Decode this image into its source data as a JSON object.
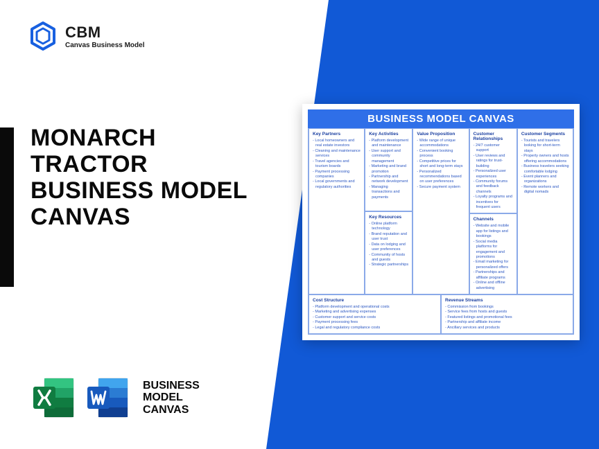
{
  "logo": {
    "title": "CBM",
    "subtitle": "Canvas Business Model"
  },
  "main_title_lines": [
    "MONARCH",
    "TRACTOR",
    "BUSINESS MODEL",
    "CANVAS"
  ],
  "bmc_label_lines": [
    "BUSINESS",
    "MODEL",
    "CANVAS"
  ],
  "colors": {
    "brand_blue": "#1159d6",
    "canvas_header": "#2f6fe8",
    "cell_border": "#8aa9e8",
    "cell_title": "#1a3fa0",
    "cell_text": "#2b57c2",
    "excel_dark": "#107c41",
    "excel_light": "#21a366",
    "excel_mid": "#33c481",
    "word_dark": "#103f91",
    "word_mid": "#185abd",
    "word_light": "#2b7cd3",
    "word_lighter": "#41a5ee"
  },
  "canvas": {
    "header": "BUSINESS MODEL CANVAS",
    "key_partners": {
      "title": "Key Partners",
      "items": [
        "Local homeowners and real estate investors",
        "Cleaning and maintenance services",
        "Travel agencies and tourism boards",
        "Payment processing companies",
        "Local governments and regulatory authorities"
      ]
    },
    "key_activities": {
      "title": "Key Activities",
      "items": [
        "Platform development and maintenance",
        "User support and community management",
        "Marketing and brand promotion",
        "Partnership and network development",
        "Managing transactions and payments"
      ]
    },
    "key_resources": {
      "title": "Key Resources",
      "items": [
        "Online platform technology",
        "Brand reputation and user trust",
        "Data on lodging and user preferences",
        "Community of hosts and guests",
        "Strategic partnerships"
      ]
    },
    "value_proposition": {
      "title": "Value Proposition",
      "items": [
        "Wide range of unique accommodations",
        "Convenient booking process",
        "Competitive prices for short and long-term stays",
        "Personalized recommendations based on user preferences",
        "Secure payment system"
      ]
    },
    "customer_relationships": {
      "title": "Customer Relationships",
      "items": [
        "24/7 customer support",
        "User reviews and ratings for trust-building",
        "Personalized user experiences",
        "Community forums and feedback channels",
        "Loyalty programs and incentives for frequent users"
      ]
    },
    "channels": {
      "title": "Channels",
      "items": [
        "Website and mobile app for listings and bookings",
        "Social media platforms for engagement and promotions",
        "Email marketing for personalized offers",
        "Partnerships and affiliate programs",
        "Online and offline advertising"
      ]
    },
    "customer_segments": {
      "title": "Customer Segments",
      "items": [
        "Tourists and travelers looking for short-term stays",
        "Property owners and hosts offering accommodations",
        "Business travelers seeking comfortable lodging",
        "Event planners and organizations",
        "Remote workers and digital nomads"
      ]
    },
    "cost_structure": {
      "title": "Cost Structure",
      "items": [
        "Platform development and operational costs",
        "Marketing and advertising expenses",
        "Customer support and service costs",
        "Payment processing fees",
        "Legal and regulatory compliance costs"
      ]
    },
    "revenue_streams": {
      "title": "Revenue Streams",
      "items": [
        "Commission from bookings",
        "Service fees from hosts and guests",
        "Featured listings and promotional fees",
        "Partnership and affiliate income",
        "Ancillary services and products"
      ]
    }
  }
}
